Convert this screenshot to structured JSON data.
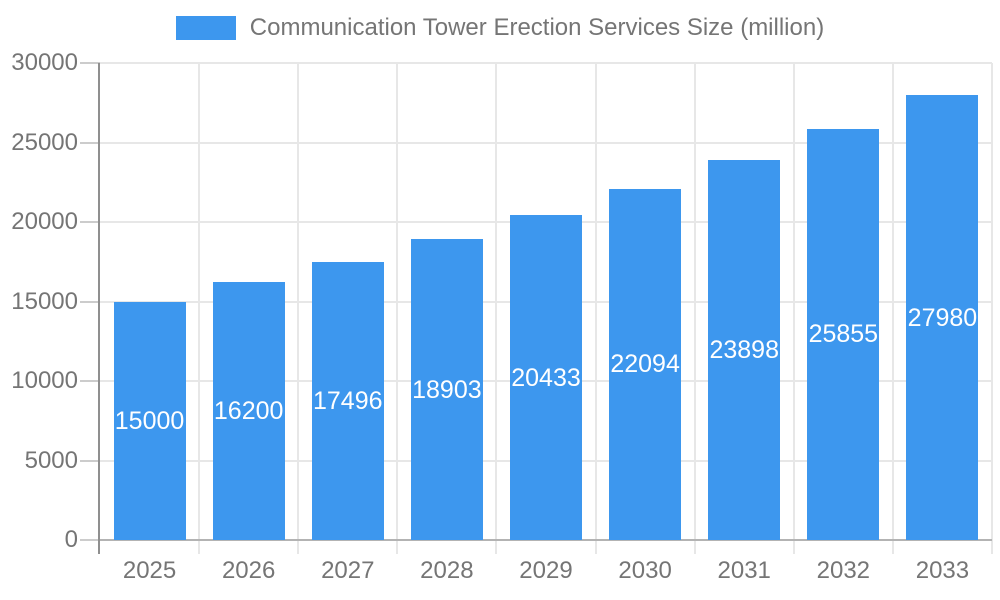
{
  "chart_data": {
    "type": "bar",
    "title": "Communication Tower Erection Services Size (million)",
    "categories": [
      "2025",
      "2026",
      "2027",
      "2028",
      "2029",
      "2030",
      "2031",
      "2032",
      "2033"
    ],
    "values": [
      15000,
      16200,
      17496,
      18903,
      20433,
      22094,
      23898,
      25855,
      27980
    ],
    "xlabel": "",
    "ylabel": "",
    "ylim": [
      0,
      30000
    ],
    "yticks": [
      0,
      5000,
      10000,
      15000,
      20000,
      25000,
      30000
    ],
    "grid": true,
    "legend_position": "top",
    "bar_color": "#3d97ee",
    "value_label_color": "#ffffff",
    "value_label_position": "center"
  },
  "legend": {
    "label": "Communication Tower Erection Services Size (million)",
    "swatch_color": "#3d97ee"
  },
  "colors": {
    "background": "#ffffff",
    "bar": "#3d97ee",
    "grid_line": "#e7e7e7",
    "axis_line": "#8f8f8f",
    "baseline": "#b3b3b3",
    "tick_mark": "#cccccc",
    "text": "#757575",
    "bar_label": "#ffffff"
  }
}
